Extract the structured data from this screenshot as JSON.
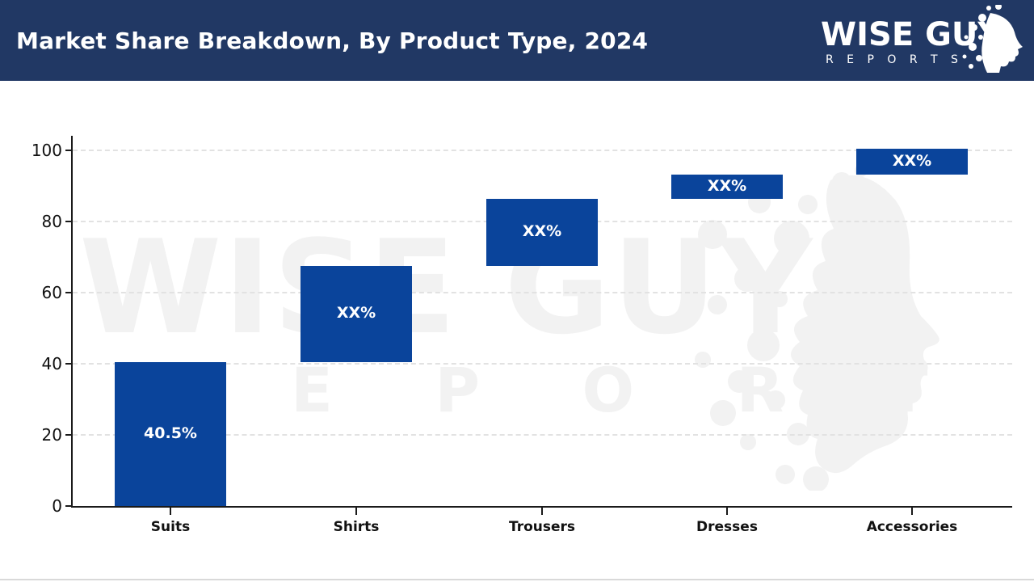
{
  "header": {
    "title": "Market Share Breakdown, By Product Type, 2024",
    "logo": {
      "line1": "WISE GUY",
      "line2": "R E P O R T S"
    }
  },
  "watermark": {
    "line1": "WISE GUY",
    "line2": "R E P O R T S"
  },
  "chart_data": {
    "type": "bar",
    "subtype": "waterfall",
    "title": "Market Share Breakdown, By Product Type, 2024",
    "categories": [
      "Suits",
      "Shirts",
      "Trousers",
      "Dresses",
      "Accessories"
    ],
    "segments": [
      {
        "category": "Suits",
        "start": 0,
        "end": 40.5,
        "value": 40.5,
        "label": "40.5%"
      },
      {
        "category": "Shirts",
        "start": 40.5,
        "end": 67.5,
        "value": 27.0,
        "label": "XX%"
      },
      {
        "category": "Trousers",
        "start": 67.5,
        "end": 86.4,
        "value": 18.9,
        "label": "XX%"
      },
      {
        "category": "Dresses",
        "start": 86.4,
        "end": 93.2,
        "value": 6.8,
        "label": "XX%"
      },
      {
        "category": "Accessories",
        "start": 93.2,
        "end": 100.4,
        "value": 7.2,
        "label": "XX%"
      }
    ],
    "y_ticks": [
      0,
      20,
      40,
      60,
      80,
      100
    ],
    "ylim": [
      0,
      104
    ],
    "xlabel": "",
    "ylabel": "",
    "grid": "horizontal-dashed",
    "legend": "none",
    "bar_color": "#0a449b",
    "label_color": "#ffffff"
  },
  "colors": {
    "header_bg": "#213864",
    "bar": "#0a449b",
    "grid": "#e2e2e2",
    "axis": "#1a1a1a",
    "watermark": "#f2f2f2"
  }
}
